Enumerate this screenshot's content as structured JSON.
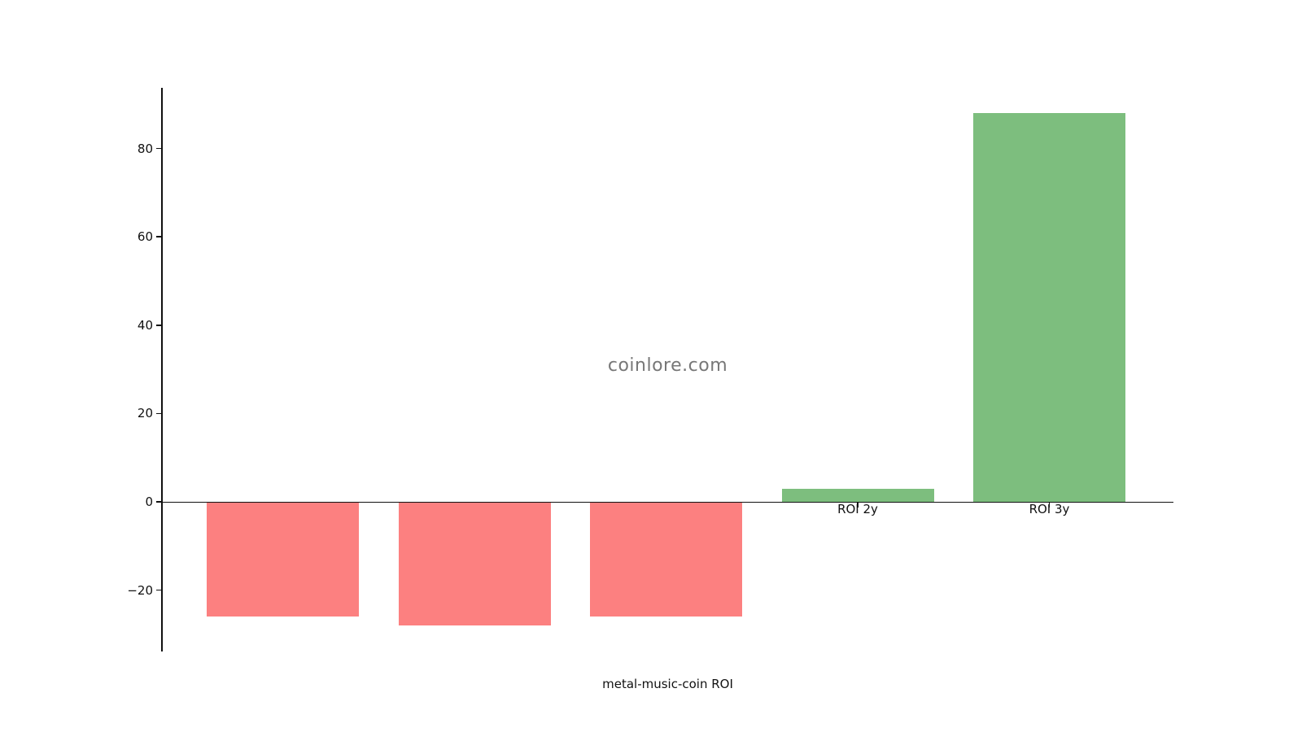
{
  "chart_data": {
    "type": "bar",
    "title": "",
    "xlabel": "metal-music-coin ROI",
    "ylabel": "",
    "watermark": "coinlore.com",
    "categories": [
      "",
      "",
      "",
      "ROI 2y",
      "ROI 3y"
    ],
    "values": [
      -26,
      -28,
      -26,
      3,
      88
    ],
    "positive_color": "#7dbe7e",
    "negative_color": "#fc8080",
    "axis_color": "#111111",
    "watermark_color": "#777777",
    "yticks": [
      {
        "label": "80",
        "value": 80
      },
      {
        "label": "60",
        "value": 60
      },
      {
        "label": "40",
        "value": 40
      },
      {
        "label": "20",
        "value": 20
      },
      {
        "label": "0",
        "value": 0
      },
      {
        "label": "−20",
        "value": -20
      }
    ],
    "ylim": [
      -34,
      94
    ],
    "grid": false,
    "legend_position": "none"
  }
}
